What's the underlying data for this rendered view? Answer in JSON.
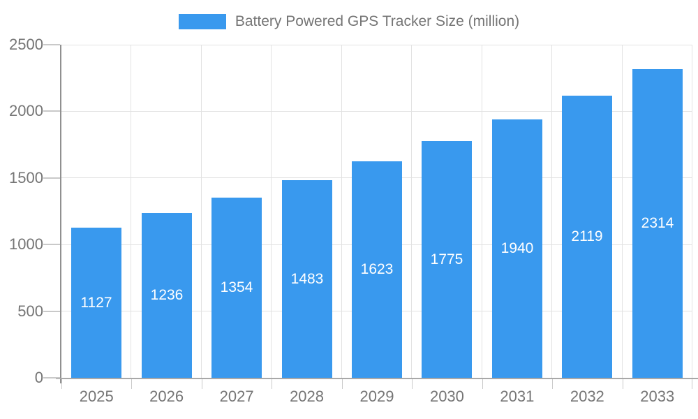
{
  "chart_data": {
    "type": "bar",
    "title": "Battery Powered GPS Tracker Size (million)",
    "legend": [
      "Battery Powered GPS Tracker Size (million)"
    ],
    "legend_position": "top-center",
    "categories": [
      "2025",
      "2026",
      "2027",
      "2028",
      "2029",
      "2030",
      "2031",
      "2032",
      "2033"
    ],
    "series": [
      {
        "name": "Battery Powered GPS Tracker Size (million)",
        "values": [
          1127,
          1236,
          1354,
          1483,
          1623,
          1775,
          1940,
          2119,
          2314
        ]
      }
    ],
    "data_labels": "inside-center, white",
    "xlabel": "",
    "ylabel": "",
    "ylim": [
      0,
      2500
    ],
    "yticks": [
      0,
      500,
      1000,
      1500,
      2000,
      2500
    ],
    "grid": "horizontal and vertical light grey lines"
  },
  "colors": {
    "bar": "#3999ee",
    "grid": "#e2e2e2",
    "axis": "#999999",
    "tick": "#c9c9c9",
    "tick_text": "#757575",
    "bar_label_text": "#ffffff",
    "background": "#ffffff"
  }
}
